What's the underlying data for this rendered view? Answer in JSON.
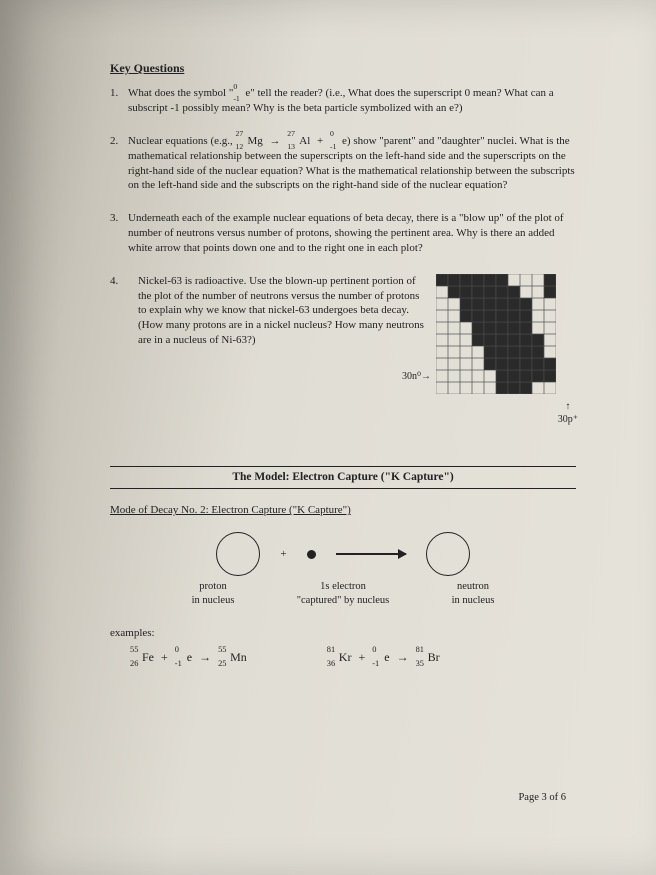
{
  "heading": "Key Questions",
  "questions": {
    "q1": {
      "num": "1.",
      "text_a": "What does the symbol \"",
      "beta_a": "0",
      "beta_z": "-1",
      "beta_sym": "e",
      "text_b": "\" tell the reader?  (i.e., What does the superscript 0 mean?  What can a subscript -1 possibly mean?  Why is the beta particle symbolized with an e?)"
    },
    "q2": {
      "num": "2.",
      "prefix": "Nuclear equations (e.g., ",
      "mg_a": "27",
      "mg_z": "12",
      "mg_sym": "Mg",
      "arrow": "→",
      "al_a": "27",
      "al_z": "13",
      "al_sym": "Al",
      "plus": "+",
      "e_a": "0",
      "e_z": "-1",
      "e_sym": "e",
      "suffix": ") show \"parent\" and \"daughter\" nuclei. What is the mathematical relationship between the superscripts on the left-hand side and the superscripts on the right-hand side of the nuclear equation?  What is the mathematical relationship between the subscripts on the left-hand side and the subscripts on the right-hand side of the nuclear equation?"
    },
    "q3": {
      "num": "3.",
      "text": "Underneath each of the example nuclear equations of beta decay, there is a \"blow up\" of the plot of number of neutrons versus number of protons, showing the pertinent area.  Why is there an added white arrow that points down one and to the right one in each plot?"
    },
    "q4": {
      "num": "4.",
      "text": "Nickel-63 is radioactive.  Use the blown-up pertinent portion of the plot of the number of neutrons versus the number of protons to explain why we know that nickel-63 undergoes beta decay.  (How many protons are in a nickel nucleus?  How many neutrons are in a nucleus of Ni-63?)"
    }
  },
  "chart": {
    "grid_cells": 10,
    "axis_x_label": "30p⁺",
    "axis_y_label": "30n⁰",
    "arrow_x": "→",
    "arrow_y": "↑",
    "filled": [
      [
        1,
        10
      ],
      [
        2,
        10
      ],
      [
        3,
        10
      ],
      [
        4,
        10
      ],
      [
        5,
        10
      ],
      [
        6,
        10
      ],
      [
        10,
        10
      ],
      [
        2,
        9
      ],
      [
        3,
        9
      ],
      [
        4,
        9
      ],
      [
        5,
        9
      ],
      [
        6,
        9
      ],
      [
        7,
        9
      ],
      [
        10,
        9
      ],
      [
        3,
        8
      ],
      [
        4,
        8
      ],
      [
        5,
        8
      ],
      [
        6,
        8
      ],
      [
        7,
        8
      ],
      [
        8,
        8
      ],
      [
        3,
        7
      ],
      [
        4,
        7
      ],
      [
        5,
        7
      ],
      [
        6,
        7
      ],
      [
        7,
        7
      ],
      [
        8,
        7
      ],
      [
        4,
        6
      ],
      [
        5,
        6
      ],
      [
        6,
        6
      ],
      [
        7,
        6
      ],
      [
        8,
        6
      ],
      [
        4,
        5
      ],
      [
        5,
        5
      ],
      [
        6,
        5
      ],
      [
        7,
        5
      ],
      [
        8,
        5
      ],
      [
        9,
        5
      ],
      [
        5,
        4
      ],
      [
        6,
        4
      ],
      [
        7,
        4
      ],
      [
        8,
        4
      ],
      [
        9,
        4
      ],
      [
        5,
        3
      ],
      [
        6,
        3
      ],
      [
        7,
        3
      ],
      [
        8,
        3
      ],
      [
        9,
        3
      ],
      [
        10,
        3
      ],
      [
        6,
        2
      ],
      [
        7,
        2
      ],
      [
        8,
        2
      ],
      [
        9,
        2
      ],
      [
        10,
        2
      ],
      [
        6,
        1
      ],
      [
        7,
        1
      ],
      [
        8,
        1
      ]
    ],
    "colors": {
      "grid": "#555",
      "fill": "#2a2a2a",
      "bg": "transparent"
    }
  },
  "model": {
    "section_title": "The Model:  Electron Capture (\"K Capture\")",
    "mode_title": "Mode of Decay No. 2:  Electron Capture (\"K Capture\")",
    "plus": "+",
    "labels": {
      "left_top": "proton",
      "left_bottom": "in nucleus",
      "mid_top": "1s electron",
      "mid_bottom": "\"captured\" by nucleus",
      "right_top": "neutron",
      "right_bottom": "in nucleus"
    }
  },
  "examples": {
    "label": "examples:",
    "eq1": {
      "p_a": "55",
      "p_z": "26",
      "p_sym": "Fe",
      "plus": "+",
      "e_a": "0",
      "e_z": "-1",
      "e_sym": "e",
      "arrow": "→",
      "d_a": "55",
      "d_z": "25",
      "d_sym": "Mn"
    },
    "eq2": {
      "p_a": "81",
      "p_z": "36",
      "p_sym": "Kr",
      "plus": "+",
      "e_a": "0",
      "e_z": "-1",
      "e_sym": "e",
      "arrow": "→",
      "d_a": "81",
      "d_z": "35",
      "d_sym": "Br"
    }
  },
  "footer": "Page 3 of 6"
}
